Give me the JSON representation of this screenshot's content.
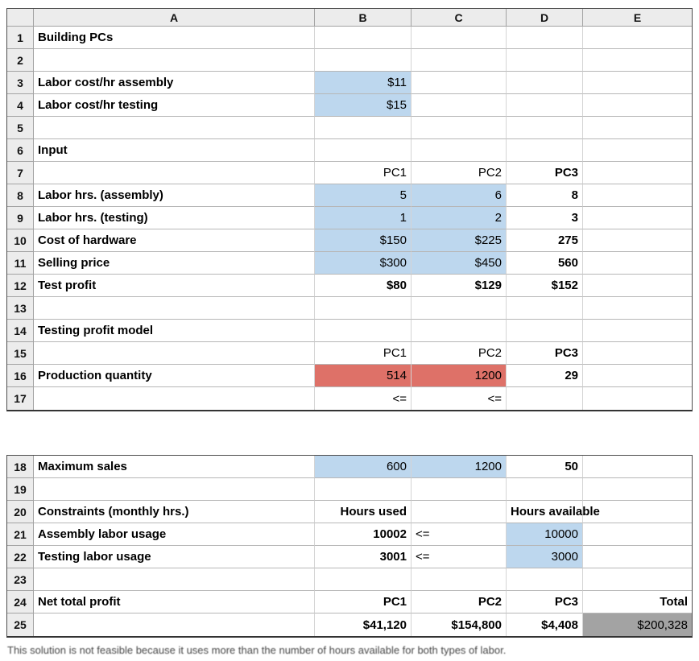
{
  "columns": [
    "A",
    "B",
    "C",
    "D",
    "E"
  ],
  "fills": {
    "blue": "#BDD7EE",
    "red": "#DE7168",
    "gray": "#A3A3A3"
  },
  "rows1": [
    {
      "n": "1",
      "cells": {
        "A": {
          "t": "Building PCs",
          "b": 1
        }
      }
    },
    {
      "n": "2"
    },
    {
      "n": "3",
      "cells": {
        "A": {
          "t": "Labor cost/hr assembly",
          "b": 1
        },
        "B": {
          "t": "$11",
          "a": "r",
          "f": "blue"
        }
      }
    },
    {
      "n": "4",
      "cells": {
        "A": {
          "t": "Labor cost/hr testing",
          "b": 1
        },
        "B": {
          "t": "$15",
          "a": "r",
          "f": "blue"
        }
      }
    },
    {
      "n": "5"
    },
    {
      "n": "6",
      "cells": {
        "A": {
          "t": "Input",
          "b": 1
        }
      }
    },
    {
      "n": "7",
      "cells": {
        "B": {
          "t": "PC1",
          "a": "r"
        },
        "C": {
          "t": "PC2",
          "a": "r"
        },
        "D": {
          "t": "PC3",
          "a": "r",
          "b": 1
        }
      }
    },
    {
      "n": "8",
      "cells": {
        "A": {
          "t": "Labor hrs. (assembly)",
          "b": 1
        },
        "B": {
          "t": "5",
          "a": "r",
          "f": "blue"
        },
        "C": {
          "t": "6",
          "a": "r",
          "f": "blue"
        },
        "D": {
          "t": "8",
          "a": "r",
          "b": 1
        }
      }
    },
    {
      "n": "9",
      "cells": {
        "A": {
          "t": "Labor hrs. (testing)",
          "b": 1
        },
        "B": {
          "t": "1",
          "a": "r",
          "f": "blue"
        },
        "C": {
          "t": "2",
          "a": "r",
          "f": "blue"
        },
        "D": {
          "t": "3",
          "a": "r",
          "b": 1
        }
      }
    },
    {
      "n": "10",
      "cells": {
        "A": {
          "t": "Cost of hardware",
          "b": 1
        },
        "B": {
          "t": "$150",
          "a": "r",
          "f": "blue"
        },
        "C": {
          "t": "$225",
          "a": "r",
          "f": "blue"
        },
        "D": {
          "t": "275",
          "a": "r",
          "b": 1
        }
      }
    },
    {
      "n": "11",
      "cells": {
        "A": {
          "t": "Selling price",
          "b": 1
        },
        "B": {
          "t": "$300",
          "a": "r",
          "f": "blue"
        },
        "C": {
          "t": "$450",
          "a": "r",
          "f": "blue"
        },
        "D": {
          "t": "560",
          "a": "r",
          "b": 1
        }
      }
    },
    {
      "n": "12",
      "cells": {
        "A": {
          "t": "Test profit",
          "b": 1
        },
        "B": {
          "t": "$80",
          "a": "r",
          "b": 1
        },
        "C": {
          "t": "$129",
          "a": "r",
          "b": 1
        },
        "D": {
          "t": "$152",
          "a": "r",
          "b": 1
        }
      }
    },
    {
      "n": "13"
    },
    {
      "n": "14",
      "cells": {
        "A": {
          "t": "Testing profit model",
          "b": 1
        }
      }
    },
    {
      "n": "15",
      "cells": {
        "B": {
          "t": "PC1",
          "a": "r"
        },
        "C": {
          "t": "PC2",
          "a": "r"
        },
        "D": {
          "t": "PC3",
          "a": "r",
          "b": 1
        }
      }
    },
    {
      "n": "16",
      "cells": {
        "A": {
          "t": "Production quantity",
          "b": 1
        },
        "B": {
          "t": "514",
          "a": "r",
          "f": "red"
        },
        "C": {
          "t": "1200",
          "a": "r",
          "f": "red"
        },
        "D": {
          "t": "29",
          "a": "r",
          "b": 1
        }
      }
    },
    {
      "n": "17",
      "cells": {
        "B": {
          "t": "<=",
          "a": "r"
        },
        "C": {
          "t": "<=",
          "a": "r"
        }
      }
    }
  ],
  "rows2": [
    {
      "n": "18",
      "cells": {
        "A": {
          "t": "Maximum sales",
          "b": 1
        },
        "B": {
          "t": "600",
          "a": "r",
          "f": "blue"
        },
        "C": {
          "t": "1200",
          "a": "r",
          "f": "blue"
        },
        "D": {
          "t": "50",
          "a": "r",
          "b": 1
        }
      }
    },
    {
      "n": "19"
    },
    {
      "n": "20",
      "cells": {
        "A": {
          "t": "Constraints (monthly hrs.)",
          "b": 1
        },
        "B": {
          "t": "Hours used",
          "a": "r",
          "b": 1
        },
        "D": {
          "t": "Hours available",
          "b": 1,
          "o": 1
        }
      }
    },
    {
      "n": "21",
      "cells": {
        "A": {
          "t": "Assembly labor usage",
          "b": 1
        },
        "B": {
          "t": "10002",
          "a": "r",
          "b": 1
        },
        "C": {
          "t": "<="
        },
        "D": {
          "t": "10000",
          "a": "r",
          "f": "blue"
        }
      }
    },
    {
      "n": "22",
      "cells": {
        "A": {
          "t": "Testing labor usage",
          "b": 1
        },
        "B": {
          "t": "3001",
          "a": "r",
          "b": 1
        },
        "C": {
          "t": "<="
        },
        "D": {
          "t": "3000",
          "a": "r",
          "f": "blue"
        }
      }
    },
    {
      "n": "23"
    },
    {
      "n": "24",
      "cells": {
        "A": {
          "t": "Net total profit",
          "b": 1
        },
        "B": {
          "t": "PC1",
          "a": "r",
          "b": 1
        },
        "C": {
          "t": "PC2",
          "a": "r",
          "b": 1
        },
        "D": {
          "t": "PC3",
          "a": "r",
          "b": 1
        },
        "E": {
          "t": "Total",
          "a": "r",
          "b": 1
        }
      }
    },
    {
      "n": "25",
      "cells": {
        "B": {
          "t": "$41,120",
          "a": "r",
          "b": 1
        },
        "C": {
          "t": "$154,800",
          "a": "r",
          "b": 1
        },
        "D": {
          "t": "$4,408",
          "a": "r",
          "b": 1
        },
        "E": {
          "t": "$200,328",
          "a": "r",
          "f": "gray"
        }
      }
    }
  ],
  "caption": "This solution is not feasible because it uses more than the number of hours available for both types of labor."
}
